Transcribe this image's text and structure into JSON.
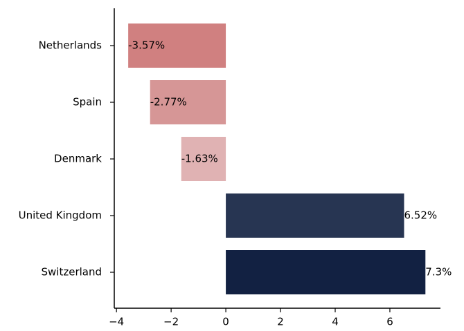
{
  "chart_data": {
    "type": "barh",
    "categories": [
      "Netherlands",
      "Spain",
      "Denmark",
      "United Kingdom",
      "Switzerland"
    ],
    "values": [
      -3.57,
      -2.77,
      -1.63,
      6.52,
      7.3
    ],
    "value_labels": [
      "-3.57%",
      "-2.77%",
      "-1.63%",
      "6.52%",
      "7.3%"
    ],
    "colors": [
      "#d08080",
      "#d69696",
      "#e0b2b3",
      "#273552",
      "#122142"
    ],
    "xlim": [
      -4.08,
      7.85
    ],
    "xticks": [
      {
        "value": -4,
        "label": "−4"
      },
      {
        "value": -2,
        "label": "−2"
      },
      0,
      2,
      4,
      6
    ]
  }
}
